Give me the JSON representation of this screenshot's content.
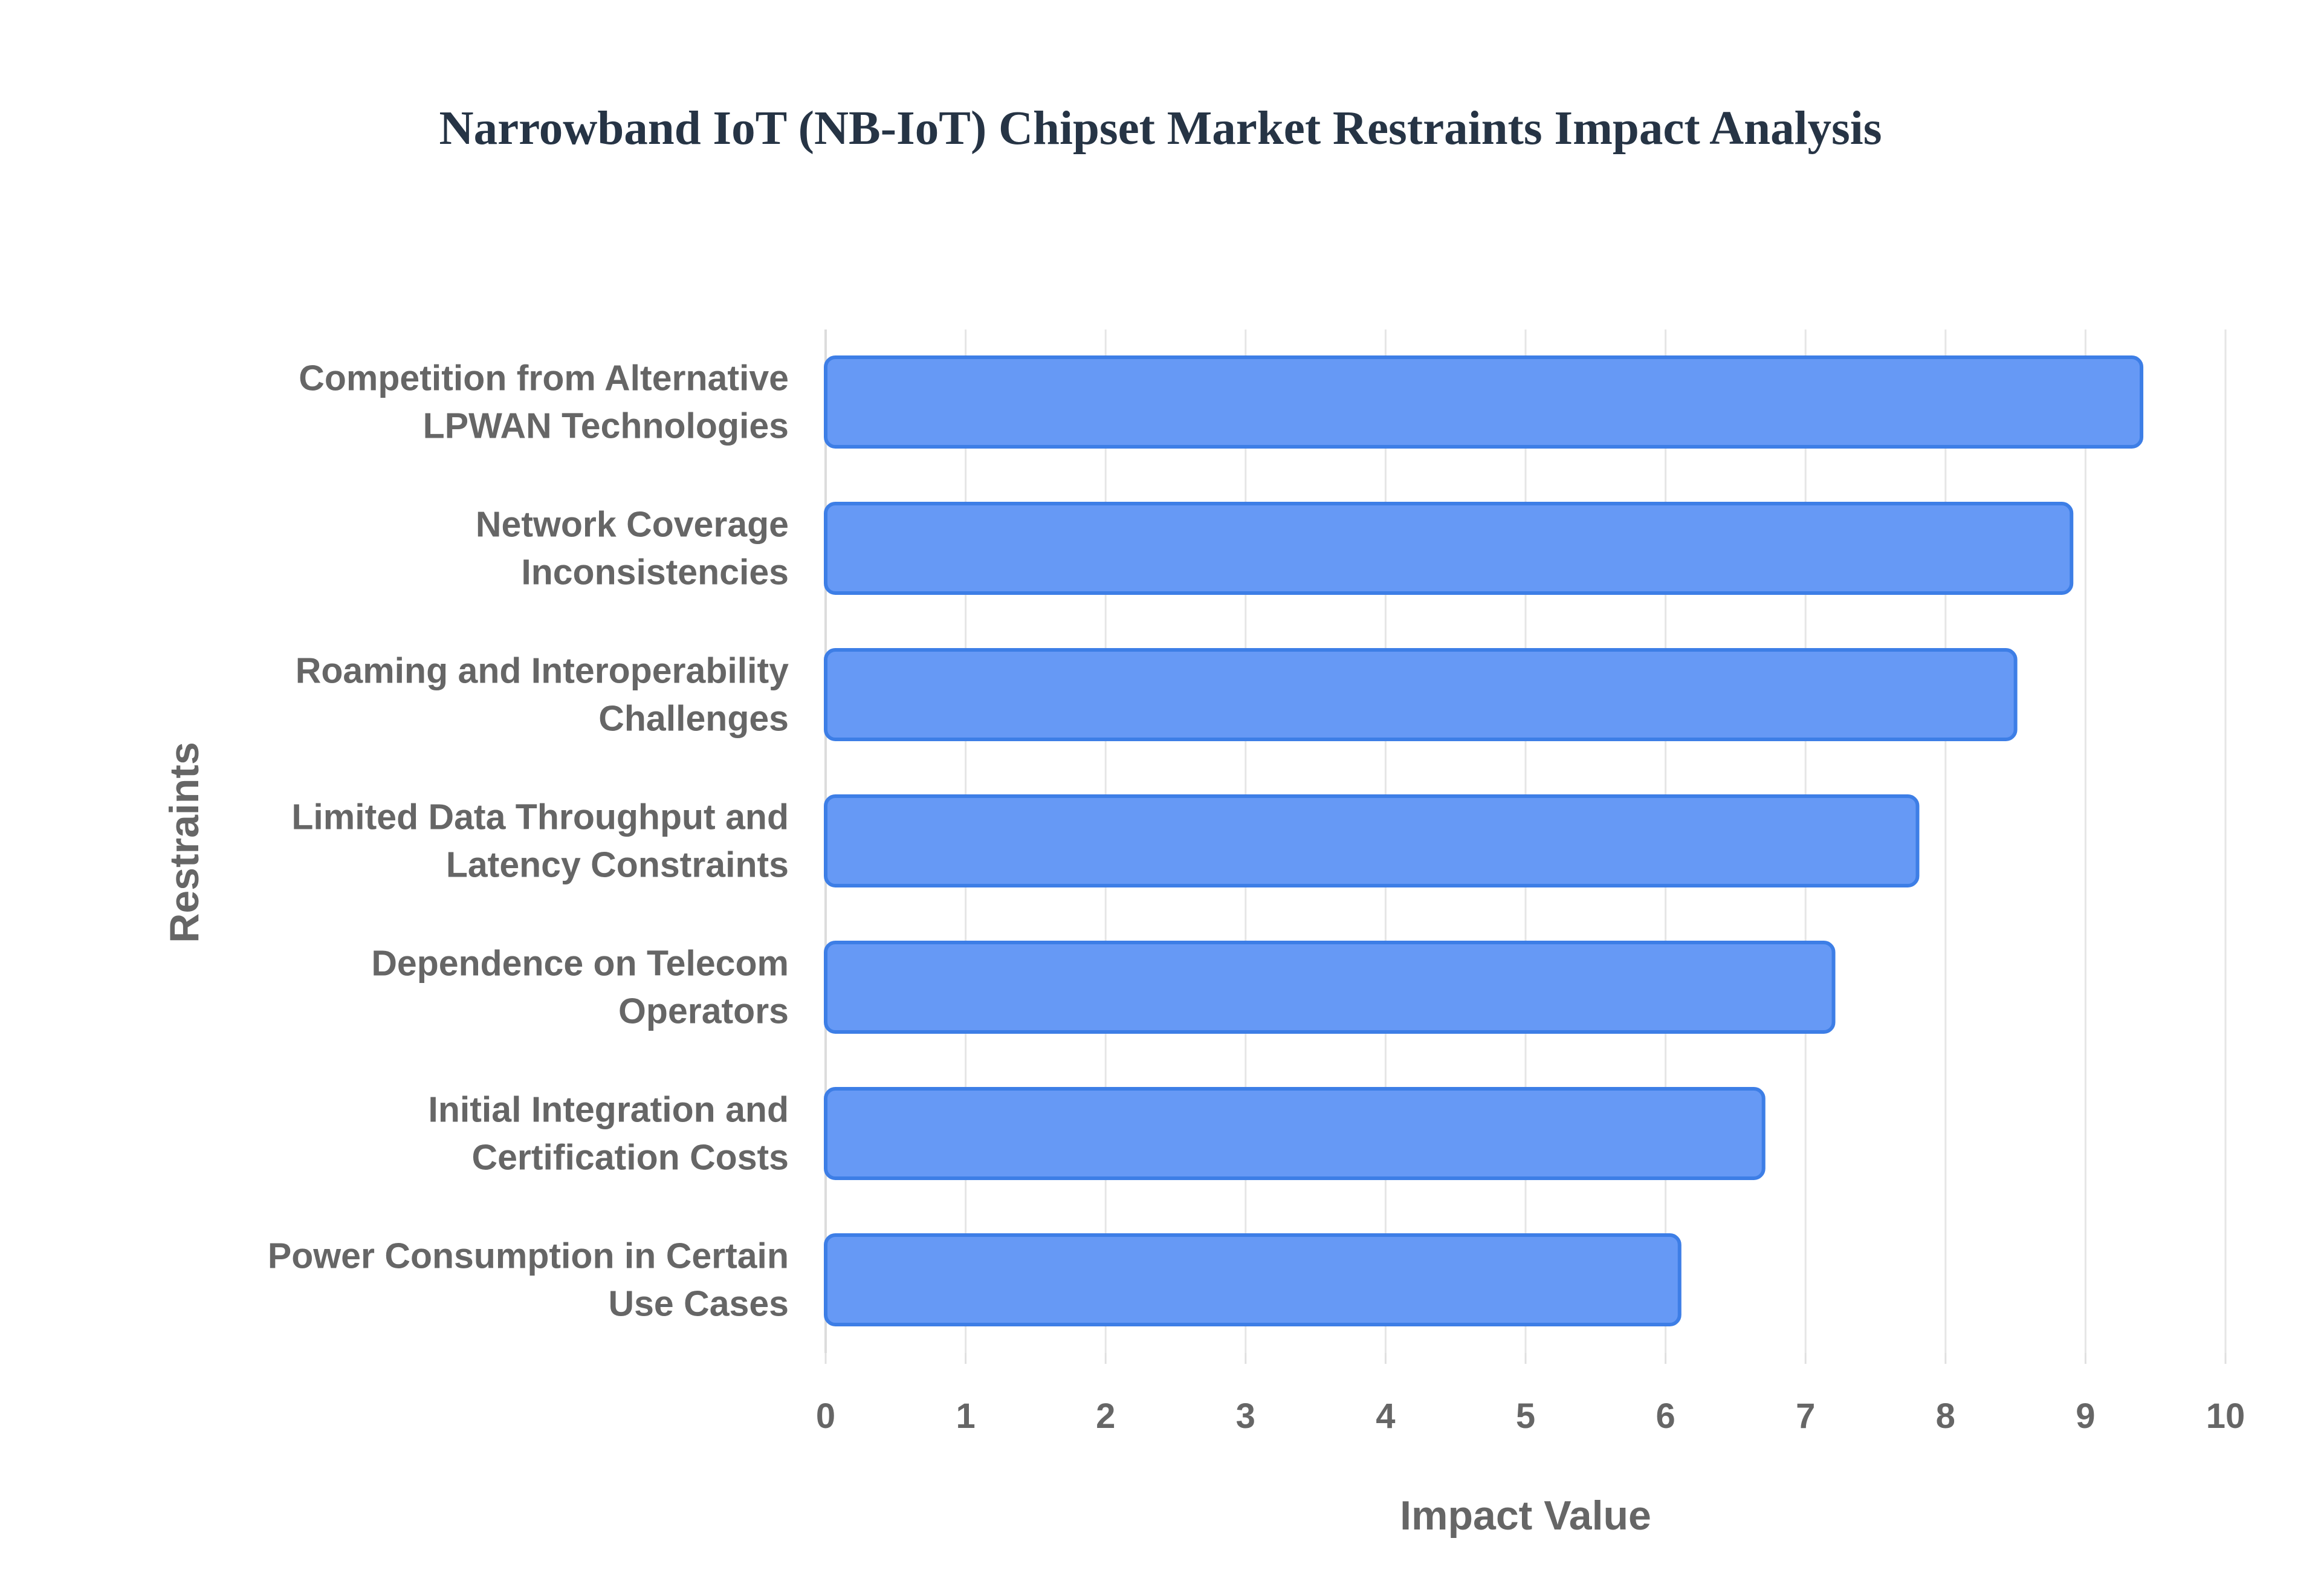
{
  "chart_data": {
    "type": "bar",
    "orientation": "horizontal",
    "title": "Narrowband IoT (NB-IoT) Chipset Market Restraints Impact Analysis",
    "xlabel": "Impact Value",
    "ylabel": "Restraints",
    "xlim": [
      0,
      10
    ],
    "xticks": [
      "0",
      "1",
      "2",
      "3",
      "4",
      "5",
      "6",
      "7",
      "8",
      "9",
      "10"
    ],
    "grid": true,
    "legend": "none",
    "bar_color": "#6699f5",
    "bar_border_color": "#3d7ee6",
    "categories": [
      [
        "Competition from Alternative",
        "LPWAN Technologies"
      ],
      [
        "Network Coverage",
        "Inconsistencies"
      ],
      [
        "Roaming and Interoperability",
        "Challenges"
      ],
      [
        "Limited Data Throughput and",
        "Latency Constraints"
      ],
      [
        "Dependence on Telecom",
        "Operators"
      ],
      [
        "Initial Integration and",
        "Certification Costs"
      ],
      [
        "Power Consumption in Certain",
        "Use Cases"
      ]
    ],
    "values": [
      9.4,
      8.9,
      8.5,
      7.8,
      7.2,
      6.7,
      6.1
    ]
  }
}
